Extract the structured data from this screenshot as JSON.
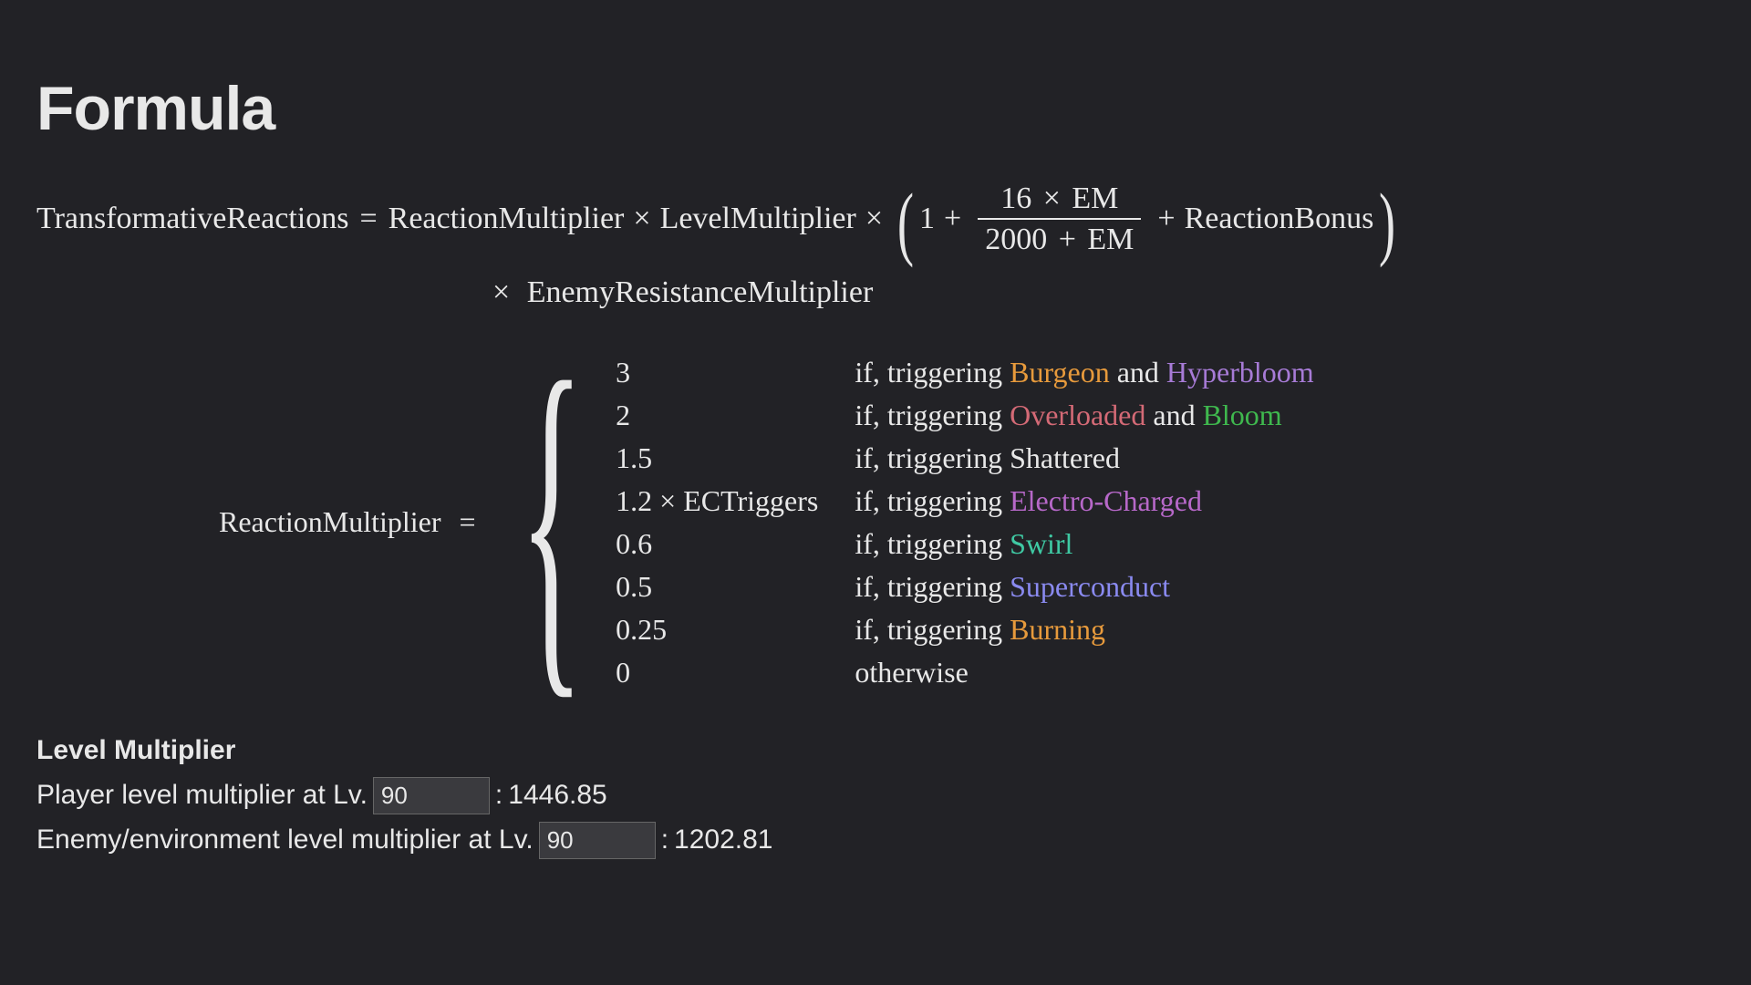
{
  "title": "Formula",
  "colors": {
    "burgeon": "#e79a3c",
    "hyperbloom": "#a77bd6",
    "overloaded": "#d46a76",
    "bloom": "#3fb84e",
    "shattered": "#e8e8e8",
    "electro_charged": "#b768c9",
    "swirl": "#3fc9a3",
    "superconduct": "#8a8af0",
    "burning": "#e79a3c"
  },
  "main_formula": {
    "lhs": "TransformativeReactions",
    "rm": "ReactionMultiplier",
    "lm": "LevelMultiplier",
    "frac_num_left": "16",
    "frac_num_right": "EM",
    "frac_den_left": "2000",
    "frac_den_right": "EM",
    "rb": "ReactionBonus",
    "erm": "EnemyResistanceMultiplier",
    "times": "×",
    "plus": "+",
    "one": "1",
    "eq": "="
  },
  "cases": {
    "lhs": "ReactionMultiplier",
    "eq": "=",
    "rows": [
      {
        "val": "3",
        "prefix": "if, triggering ",
        "tokens": [
          {
            "t": "Burgeon",
            "c": "burgeon"
          },
          {
            "t": " and ",
            "c": null
          },
          {
            "t": "Hyperbloom",
            "c": "hyperbloom"
          }
        ]
      },
      {
        "val": "2",
        "prefix": "if, triggering ",
        "tokens": [
          {
            "t": "Overloaded",
            "c": "overloaded"
          },
          {
            "t": " and ",
            "c": null
          },
          {
            "t": "Bloom",
            "c": "bloom"
          }
        ]
      },
      {
        "val": "1.5",
        "prefix": "if, triggering ",
        "tokens": [
          {
            "t": "Shattered",
            "c": "shattered"
          }
        ]
      },
      {
        "val": "1.2 × ECTriggers",
        "prefix": "if, triggering ",
        "tokens": [
          {
            "t": "Electro-Charged",
            "c": "electro_charged"
          }
        ]
      },
      {
        "val": "0.6",
        "prefix": "if, triggering ",
        "tokens": [
          {
            "t": "Swirl",
            "c": "swirl"
          }
        ]
      },
      {
        "val": "0.5",
        "prefix": "if, triggering ",
        "tokens": [
          {
            "t": "Superconduct",
            "c": "superconduct"
          }
        ]
      },
      {
        "val": "0.25",
        "prefix": "if, triggering ",
        "tokens": [
          {
            "t": "Burning",
            "c": "burning"
          }
        ]
      },
      {
        "val": "0",
        "prefix": "otherwise",
        "tokens": []
      }
    ]
  },
  "level_mult": {
    "heading": "Level Multiplier",
    "player_label_pre": "Player level multiplier at Lv. ",
    "player_level": "90",
    "player_value": "1446.85",
    "enemy_label_pre": "Enemy/environment level multiplier at Lv. ",
    "enemy_level": "90",
    "enemy_value": "1202.81",
    "colon": ": "
  }
}
